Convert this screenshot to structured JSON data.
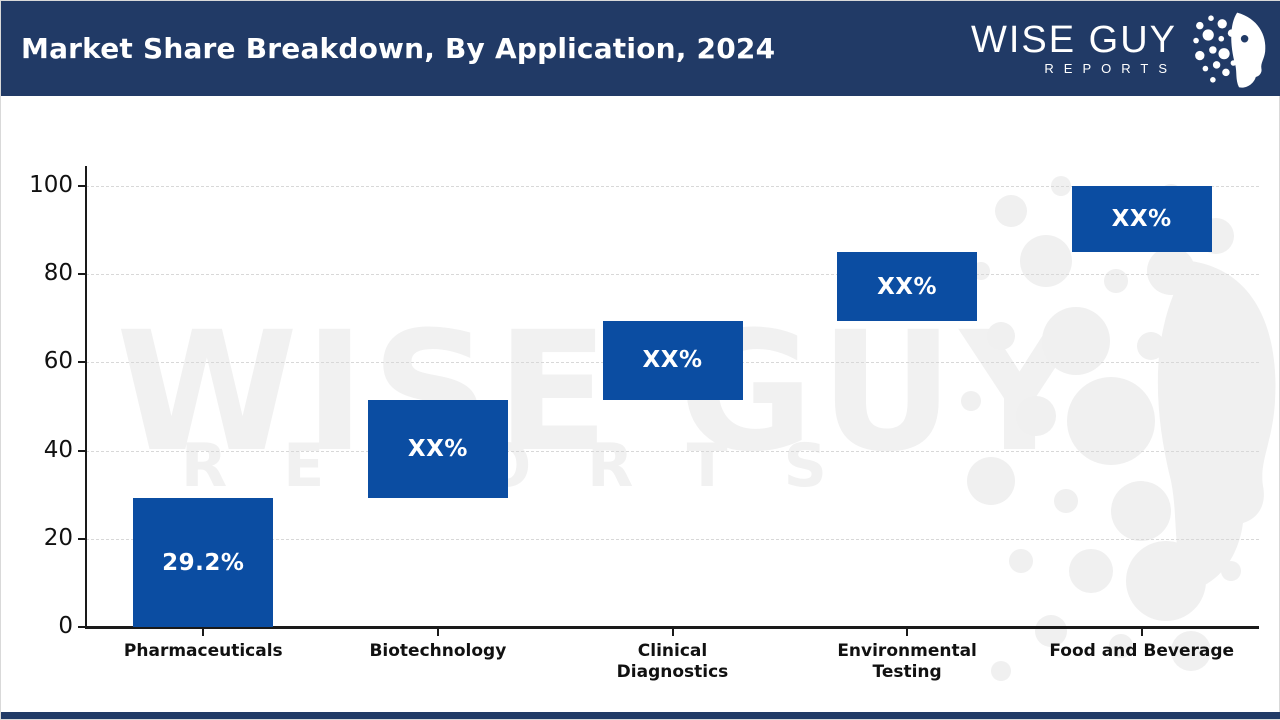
{
  "header": {
    "title": "Market Share Breakdown, By Application, 2024",
    "bg_color": "#213a66",
    "logo": {
      "line1": "WISE GUY",
      "line2": "REPORTS"
    }
  },
  "watermark": {
    "line1": "WISE GUY",
    "line2": "REPORTS"
  },
  "chart_data": {
    "type": "bar",
    "subtype": "waterfall",
    "title": "Market Share Breakdown, By Application, 2024",
    "categories": [
      "Pharmaceuticals",
      "Biotechnology",
      "Clinical Diagnostics",
      "Environmental Testing",
      "Food and Beverage"
    ],
    "category_label_lines": [
      [
        "Pharmaceuticals"
      ],
      [
        "Biotechnology"
      ],
      [
        "Clinical",
        "Diagnostics"
      ],
      [
        "Environmental",
        "Testing"
      ],
      [
        "Food and Beverage"
      ]
    ],
    "segments": [
      {
        "category": "Pharmaceuticals",
        "start": 0,
        "end": 29.2,
        "label": "29.2%"
      },
      {
        "category": "Biotechnology",
        "start": 29.2,
        "end": 51.5,
        "label": "XX%"
      },
      {
        "category": "Clinical Diagnostics",
        "start": 51.5,
        "end": 69.4,
        "label": "XX%"
      },
      {
        "category": "Environmental Testing",
        "start": 69.4,
        "end": 85.0,
        "label": "XX%"
      },
      {
        "category": "Food and Beverage",
        "start": 85.0,
        "end": 100.0,
        "label": "XX%"
      }
    ],
    "yticks": [
      0,
      20,
      40,
      60,
      80,
      100
    ],
    "ylim": [
      0,
      100
    ],
    "grid": "horizontal-dashed",
    "bar_color": "#0b4da2",
    "bar_label_color": "#ffffff",
    "axis_color": "#1a1a1a",
    "grid_color": "#d8d8d8",
    "legend": "none"
  }
}
